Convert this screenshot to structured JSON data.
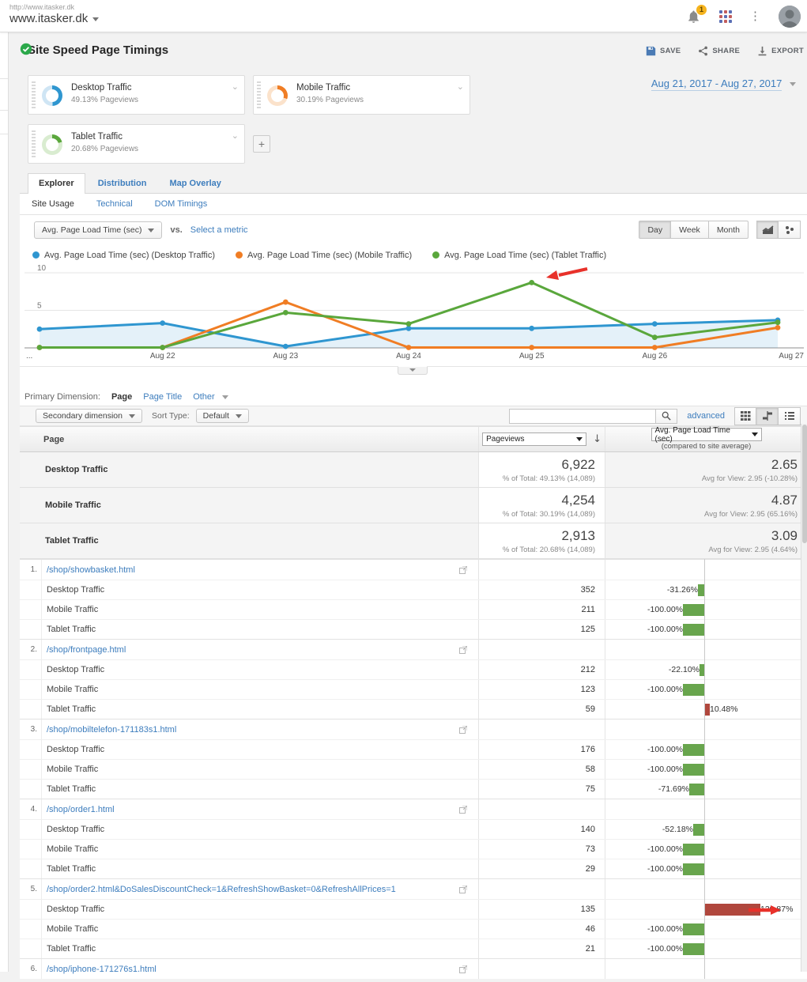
{
  "topbar": {
    "property_url": "http://www.itasker.dk",
    "property_name": "www.itasker.dk",
    "notification_count": "1"
  },
  "report": {
    "title": "Site Speed Page Timings",
    "save": "SAVE",
    "share": "SHARE",
    "export": "EXPORT",
    "date_range": "Aug 21, 2017 - Aug 27, 2017"
  },
  "segments": [
    {
      "name": "Desktop Traffic",
      "detail": "49.13% Pageviews",
      "pct": 49.13,
      "color": "#2f96d0",
      "track": "#cfe5f4"
    },
    {
      "name": "Mobile Traffic",
      "detail": "30.19% Pageviews",
      "pct": 30.19,
      "color": "#f07d24",
      "track": "#fbe2cb"
    },
    {
      "name": "Tablet Traffic",
      "detail": "20.68% Pageviews",
      "pct": 20.68,
      "color": "#5aa73c",
      "track": "#d9ecd0"
    }
  ],
  "add_segment": "+",
  "tabs": {
    "explorer": "Explorer",
    "distribution": "Distribution",
    "map_overlay": "Map Overlay"
  },
  "subtabs": {
    "site_usage": "Site Usage",
    "technical": "Technical",
    "dom_timings": "DOM Timings"
  },
  "metric_bar": {
    "metric": "Avg. Page Load Time (sec)",
    "vs": "vs.",
    "select_metric": "Select a metric",
    "day": "Day",
    "week": "Week",
    "month": "Month"
  },
  "chart_data": {
    "type": "line",
    "x": [
      "Aug 21",
      "Aug 22",
      "Aug 23",
      "Aug 24",
      "Aug 25",
      "Aug 26",
      "Aug 27"
    ],
    "x_tick_labels": [
      "...",
      "Aug 22",
      "Aug 23",
      "Aug 24",
      "Aug 25",
      "Aug 26",
      "Aug 27"
    ],
    "ylim": [
      0,
      10
    ],
    "yticks": [
      5,
      10
    ],
    "grid": true,
    "legend_position": "top",
    "series": [
      {
        "name": "Avg. Page Load Time (sec) (Desktop Traffic)",
        "color": "#2f96d0",
        "area": true,
        "values": [
          2.5,
          3.3,
          0.2,
          2.6,
          2.6,
          3.2,
          3.7
        ]
      },
      {
        "name": "Avg. Page Load Time (sec) (Mobile Traffic)",
        "color": "#f07d24",
        "area": false,
        "values": [
          0.05,
          0.05,
          6.1,
          0.05,
          0.05,
          0.05,
          2.7
        ]
      },
      {
        "name": "Avg. Page Load Time (sec) (Tablet Traffic)",
        "color": "#5aa73c",
        "area": false,
        "values": [
          0.05,
          0.05,
          4.7,
          3.2,
          8.7,
          1.4,
          3.4
        ]
      }
    ],
    "annotations": [
      {
        "type": "arrow",
        "target": "Tablet Traffic peak on Aug 25",
        "color": "#e8312a"
      }
    ]
  },
  "dimension_bar": {
    "label": "Primary Dimension:",
    "active": "Page",
    "link1": "Page Title",
    "link2": "Other"
  },
  "toolbar": {
    "secondary_dimension": "Secondary dimension",
    "sort_type_label": "Sort Type:",
    "sort_type_value": "Default",
    "advanced": "advanced",
    "search_value": ""
  },
  "table": {
    "headers": {
      "page": "Page",
      "pageviews": "Pageviews",
      "metric": "Avg. Page Load Time (sec)",
      "metric_note": "(compared to site average)"
    },
    "bar_colors": {
      "negative": "#68a54d",
      "positive": "#b0473d"
    },
    "summary": [
      {
        "label": "Desktop Traffic",
        "value": "6,922",
        "sub": "% of Total: 49.13% (14,089)",
        "metric": "2.65",
        "metric_sub": "Avg for View: 2.95 (-10.28%)"
      },
      {
        "label": "Mobile Traffic",
        "value": "4,254",
        "sub": "% of Total: 30.19% (14,089)",
        "metric": "4.87",
        "metric_sub": "Avg for View: 2.95 (65.16%)"
      },
      {
        "label": "Tablet Traffic",
        "value": "2,913",
        "sub": "% of Total: 20.68% (14,089)",
        "metric": "3.09",
        "metric_sub": "Avg for View: 2.95 (4.64%)"
      }
    ],
    "rows": [
      {
        "num": "1.",
        "page": "/shop/showbasket.html",
        "subs": [
          {
            "label": "Desktop Traffic",
            "pageviews": "352",
            "pct": -31.26,
            "pct_label": "-31.26%"
          },
          {
            "label": "Mobile Traffic",
            "pageviews": "211",
            "pct": -100,
            "pct_label": "-100.00%"
          },
          {
            "label": "Tablet Traffic",
            "pageviews": "125",
            "pct": -100,
            "pct_label": "-100.00%"
          }
        ]
      },
      {
        "num": "2.",
        "page": "/shop/frontpage.html",
        "subs": [
          {
            "label": "Desktop Traffic",
            "pageviews": "212",
            "pct": -22.1,
            "pct_label": "-22.10%"
          },
          {
            "label": "Mobile Traffic",
            "pageviews": "123",
            "pct": -100,
            "pct_label": "-100.00%"
          },
          {
            "label": "Tablet Traffic",
            "pageviews": "59",
            "pct": 10.48,
            "pct_label": "10.48%"
          }
        ]
      },
      {
        "num": "3.",
        "page": "/shop/mobiltelefon-171183s1.html",
        "subs": [
          {
            "label": "Desktop Traffic",
            "pageviews": "176",
            "pct": -100,
            "pct_label": "-100.00%"
          },
          {
            "label": "Mobile Traffic",
            "pageviews": "58",
            "pct": -100,
            "pct_label": "-100.00%"
          },
          {
            "label": "Tablet Traffic",
            "pageviews": "75",
            "pct": -71.69,
            "pct_label": "-71.69%"
          }
        ]
      },
      {
        "num": "4.",
        "page": "/shop/order1.html",
        "subs": [
          {
            "label": "Desktop Traffic",
            "pageviews": "140",
            "pct": -52.18,
            "pct_label": "-52.18%"
          },
          {
            "label": "Mobile Traffic",
            "pageviews": "73",
            "pct": -100,
            "pct_label": "-100.00%"
          },
          {
            "label": "Tablet Traffic",
            "pageviews": "29",
            "pct": -100,
            "pct_label": "-100.00%"
          }
        ]
      },
      {
        "num": "5.",
        "page": "/shop/order2.html&DoSalesDiscountCheck=1&RefreshShowBasket=0&RefreshAllPrices=1",
        "subs": [
          {
            "label": "Desktop Traffic",
            "pageviews": "135",
            "pct": 130.87,
            "pct_label": "130.87%",
            "arrow": true
          },
          {
            "label": "Mobile Traffic",
            "pageviews": "46",
            "pct": -100,
            "pct_label": "-100.00%"
          },
          {
            "label": "Tablet Traffic",
            "pageviews": "21",
            "pct": -100,
            "pct_label": "-100.00%"
          }
        ]
      },
      {
        "num": "6.",
        "page": "/shop/iphone-171276s1.html",
        "subs": []
      }
    ]
  }
}
